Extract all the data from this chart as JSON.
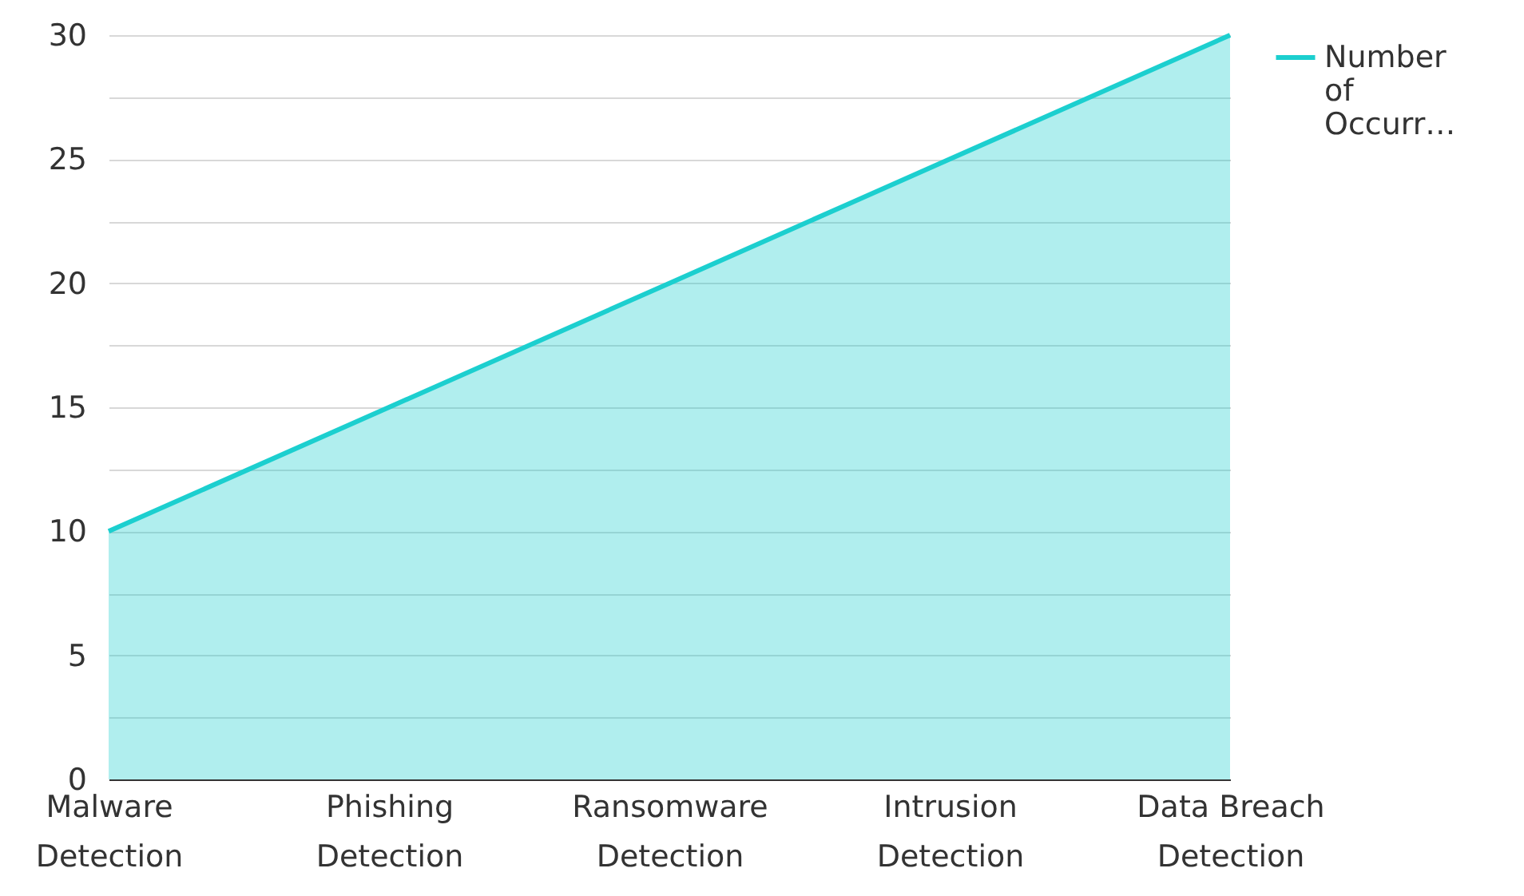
{
  "chart_data": {
    "type": "area",
    "categories": [
      "Malware Detection",
      "Phishing Detection",
      "Ransomware Detection",
      "Intrusion Detection",
      "Data Breach Detection"
    ],
    "series": [
      {
        "name": "Number of Occurr…",
        "color": "#1ccfcf",
        "values": [
          10,
          15,
          20,
          25,
          30
        ]
      }
    ],
    "ylim": [
      0,
      30
    ],
    "yticks": [
      0,
      {
        "value": 2.5,
        "label": null
      },
      5,
      {
        "value": 7.5,
        "label": null
      },
      10,
      {
        "value": 12.5,
        "label": null
      },
      15,
      {
        "value": 17.5,
        "label": null
      },
      20,
      {
        "value": 22.5,
        "label": null
      },
      25,
      {
        "value": 27.5,
        "label": null
      },
      30
    ],
    "grid": "y",
    "legend": "right",
    "marker": "none",
    "line_style": "solid"
  }
}
